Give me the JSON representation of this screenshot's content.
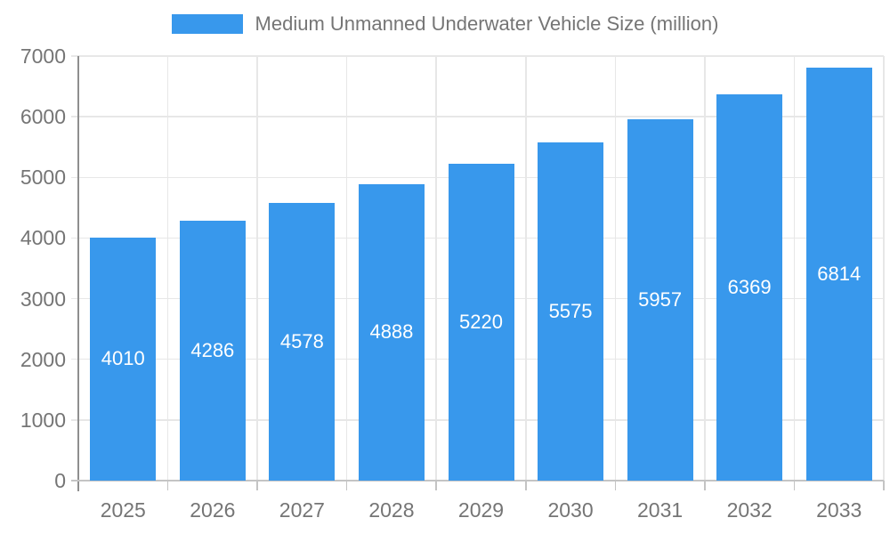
{
  "legend": {
    "label": "Medium Unmanned Underwater Vehicle Size (million)"
  },
  "colors": {
    "bar": "#3898ec",
    "axis_text": "#757575",
    "bar_label_text": "#ffffff",
    "gridline": "#e7e7e7",
    "y_axis_line": "#8f8f8f",
    "x_axis_line": "#c4c4c4"
  },
  "chart_data": {
    "type": "bar",
    "title": "Medium Unmanned Underwater Vehicle Size (million)",
    "categories": [
      "2025",
      "2026",
      "2027",
      "2028",
      "2029",
      "2030",
      "2031",
      "2032",
      "2033"
    ],
    "values": [
      4010,
      4286,
      4578,
      4888,
      5220,
      5575,
      5957,
      6369,
      6814
    ],
    "xlabel": "",
    "ylabel": "",
    "ylim": [
      0,
      7000
    ],
    "yticks": [
      0,
      1000,
      2000,
      3000,
      4000,
      5000,
      6000,
      7000
    ],
    "grid": true,
    "legend_position": "top",
    "bar_value_labels": "centered-inside-bars"
  }
}
